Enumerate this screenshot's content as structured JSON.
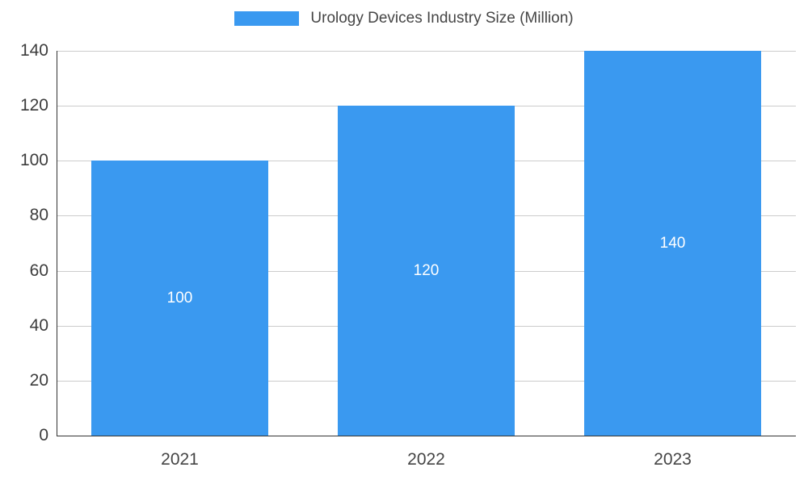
{
  "chart_data": {
    "type": "bar",
    "title": "Urology Devices Industry Size (Million)",
    "categories": [
      "2021",
      "2022",
      "2023"
    ],
    "series": [
      {
        "name": "Urology Devices Industry Size (Million)",
        "values": [
          100,
          120,
          140
        ]
      }
    ],
    "bar_value_labels": [
      "100",
      "120",
      "140"
    ],
    "xlabel": "",
    "ylabel": "",
    "ylim": [
      0,
      140
    ],
    "y_ticks": [
      0,
      20,
      40,
      60,
      80,
      100,
      120,
      140
    ],
    "grid": true,
    "legend_position": "top-center",
    "colors": {
      "bar": "#3A99F0",
      "bar_label_text": "#FFFFFF",
      "grid": "#CCCCCC",
      "axis": "#333333",
      "tick_text": "#3C3C3C",
      "title_text": "#454545",
      "background": "#FFFFFF"
    }
  }
}
